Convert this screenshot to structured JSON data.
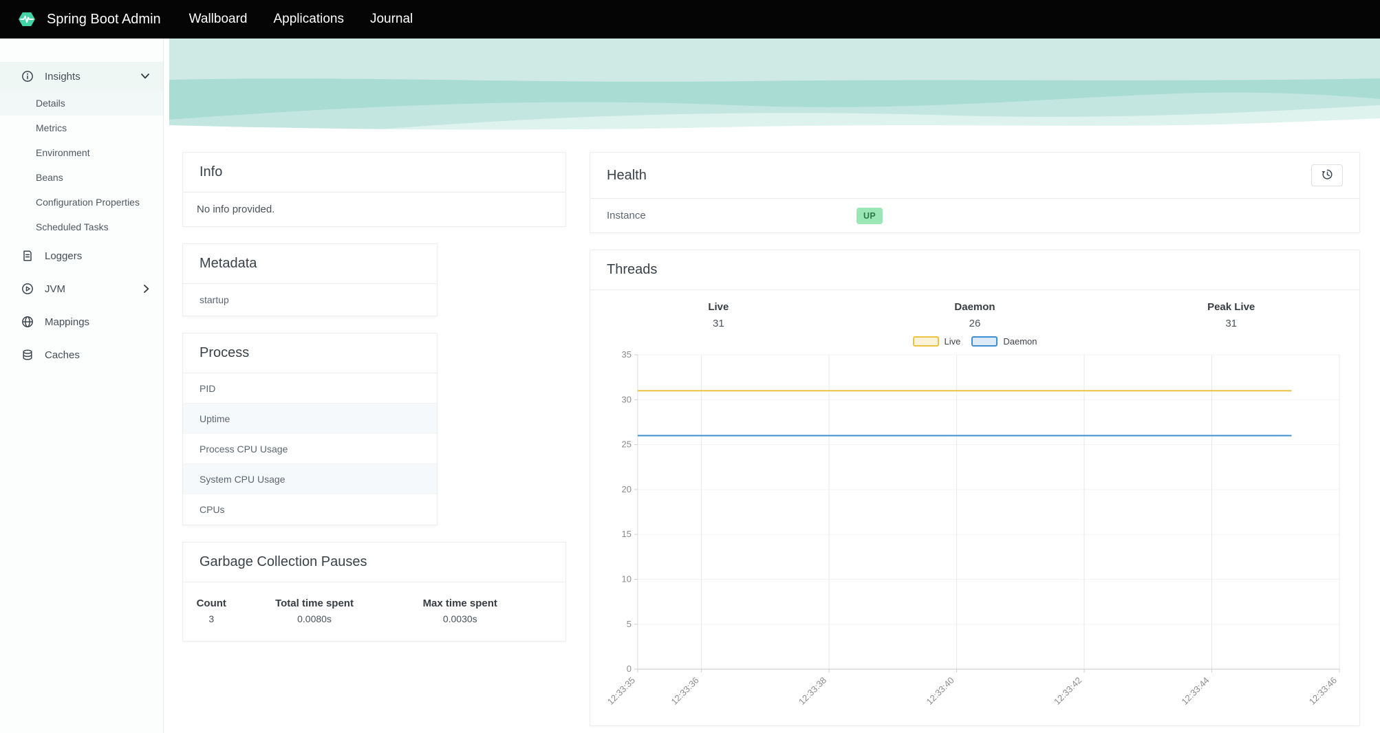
{
  "navbar": {
    "brand": "Spring Boot Admin",
    "items": [
      {
        "label": "Wallboard"
      },
      {
        "label": "Applications"
      },
      {
        "label": "Journal"
      }
    ]
  },
  "sidebar": {
    "insights_label": "Insights",
    "insights_children": [
      "Details",
      "Metrics",
      "Environment",
      "Beans",
      "Configuration Properties",
      "Scheduled Tasks"
    ],
    "active_child": "Details",
    "loggers_label": "Loggers",
    "jvm_label": "JVM",
    "mappings_label": "Mappings",
    "caches_label": "Caches"
  },
  "cards": {
    "info": {
      "title": "Info",
      "body": "No info provided."
    },
    "metadata": {
      "title": "Metadata",
      "rows": [
        "startup"
      ]
    },
    "process": {
      "title": "Process",
      "rows": [
        "PID",
        "Uptime",
        "Process CPU Usage",
        "System CPU Usage",
        "CPUs"
      ]
    },
    "gc": {
      "title": "Garbage Collection Pauses",
      "columns": [
        "Count",
        "Total time spent",
        "Max time spent"
      ],
      "values": [
        "3",
        "0.0080s",
        "0.0030s"
      ]
    },
    "health": {
      "title": "Health",
      "instance_label": "Instance",
      "status": "UP",
      "status_bg": "#9ae6b4",
      "status_text": "#2b7a4b"
    },
    "threads": {
      "title": "Threads",
      "stats": [
        {
          "label": "Live",
          "value": "31"
        },
        {
          "label": "Daemon",
          "value": "26"
        },
        {
          "label": "Peak Live",
          "value": "31"
        }
      ]
    }
  },
  "chart_data": {
    "type": "line",
    "title": "Threads",
    "ylim": [
      0,
      35
    ],
    "y_ticks": [
      0,
      5,
      10,
      15,
      20,
      25,
      30,
      35
    ],
    "x_range": [
      35,
      46
    ],
    "x_ticks": [
      {
        "label": "12:33:35",
        "t": 35
      },
      {
        "label": "12:33:36",
        "t": 36
      },
      {
        "label": "12:33:38",
        "t": 38
      },
      {
        "label": "12:33:40",
        "t": 40
      },
      {
        "label": "12:33:42",
        "t": 42
      },
      {
        "label": "12:33:44",
        "t": 44
      },
      {
        "label": "12:33:46",
        "t": 46
      }
    ],
    "series": [
      {
        "name": "Live",
        "value": 31,
        "x_start": 35,
        "x_end": 45.25,
        "color": "#edc240",
        "fill": "#fbf3d8"
      },
      {
        "name": "Daemon",
        "value": 26,
        "x_start": 35,
        "x_end": 45.25,
        "color": "#3e8ed0",
        "fill": "#dcebf7"
      }
    ],
    "legend_position": "top",
    "grid": true
  },
  "colors": {
    "accent": "#42d3a5",
    "live": "#edc240",
    "daemon": "#3e8ed0"
  }
}
